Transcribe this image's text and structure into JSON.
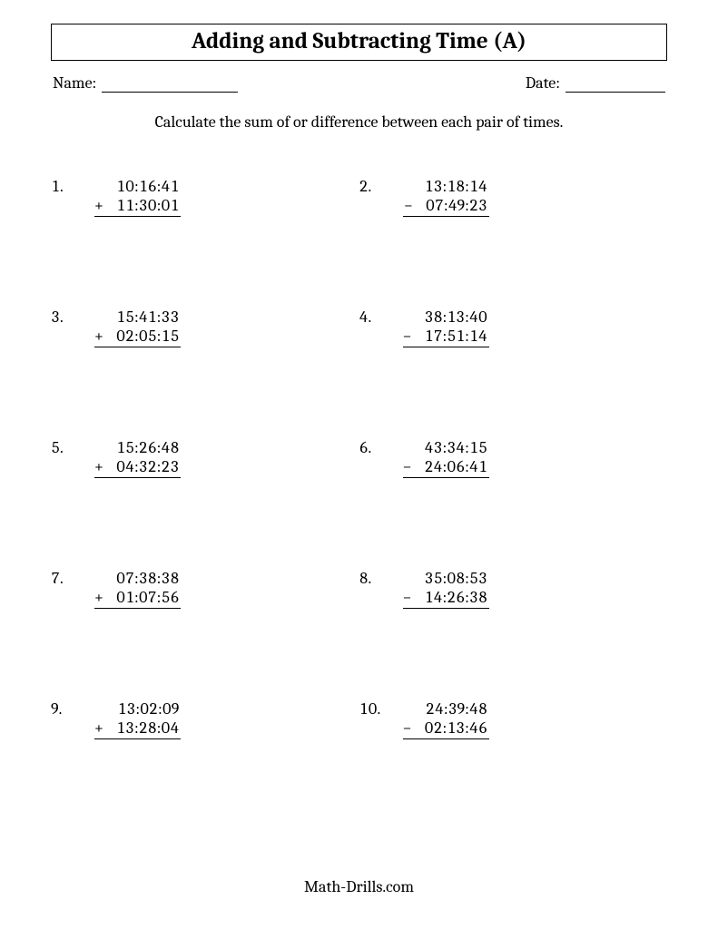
{
  "title": "Adding and Subtracting Time (A)",
  "name_label": "Name:",
  "date_label": "Date:",
  "instructions": "Calculate the sum of or difference between each pair of times.",
  "footer": "Math-Drills.com",
  "problems": [
    {
      "n": "1.",
      "a": "10:16:41",
      "op": "+",
      "b": "11:30:01"
    },
    {
      "n": "2.",
      "a": "13:18:14",
      "op": "−",
      "b": "07:49:23"
    },
    {
      "n": "3.",
      "a": "15:41:33",
      "op": "+",
      "b": "02:05:15"
    },
    {
      "n": "4.",
      "a": "38:13:40",
      "op": "−",
      "b": "17:51:14"
    },
    {
      "n": "5.",
      "a": "15:26:48",
      "op": "+",
      "b": "04:32:23"
    },
    {
      "n": "6.",
      "a": "43:34:15",
      "op": "−",
      "b": "24:06:41"
    },
    {
      "n": "7.",
      "a": "07:38:38",
      "op": "+",
      "b": "01:07:56"
    },
    {
      "n": "8.",
      "a": "35:08:53",
      "op": "−",
      "b": "14:26:38"
    },
    {
      "n": "9.",
      "a": "13:02:09",
      "op": "+",
      "b": "13:28:04"
    },
    {
      "n": "10.",
      "a": "24:39:48",
      "op": "−",
      "b": "02:13:46"
    }
  ]
}
